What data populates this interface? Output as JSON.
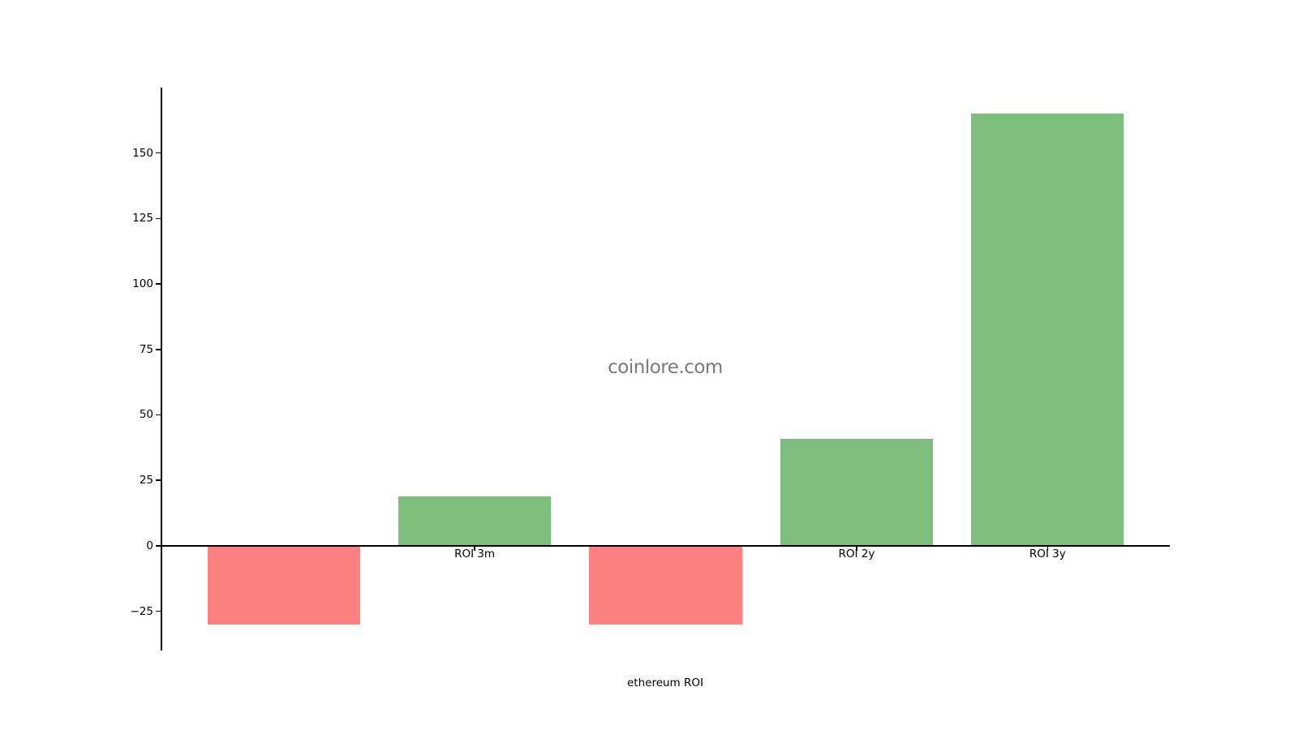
{
  "chart_data": {
    "type": "bar",
    "title": "",
    "xlabel": "ethereum ROI",
    "ylabel": "",
    "watermark": "coinlore.com",
    "categories": [
      "",
      "ROI 3m",
      "",
      "ROI 2y",
      "ROI 3y"
    ],
    "values": [
      -30,
      19,
      -30,
      41,
      165
    ],
    "bar_colors": [
      "#fd8181",
      "#7dbe7d",
      "#fd8181",
      "#7dbe7d",
      "#7dbe7d"
    ],
    "positive_color": "#7dbe7d",
    "negative_color": "#fd8181",
    "y_ticks": [
      150,
      125,
      100,
      75,
      50,
      25,
      0,
      -25
    ],
    "ylim": [
      -40,
      175
    ],
    "xlim": [
      -0.64,
      4.64
    ],
    "bar_width": 0.8,
    "grid": false,
    "legend": null,
    "background_color": "#ffffff",
    "axis_color": "#000000",
    "text_color": "#000000",
    "watermark_color": "#7a7a7a"
  }
}
